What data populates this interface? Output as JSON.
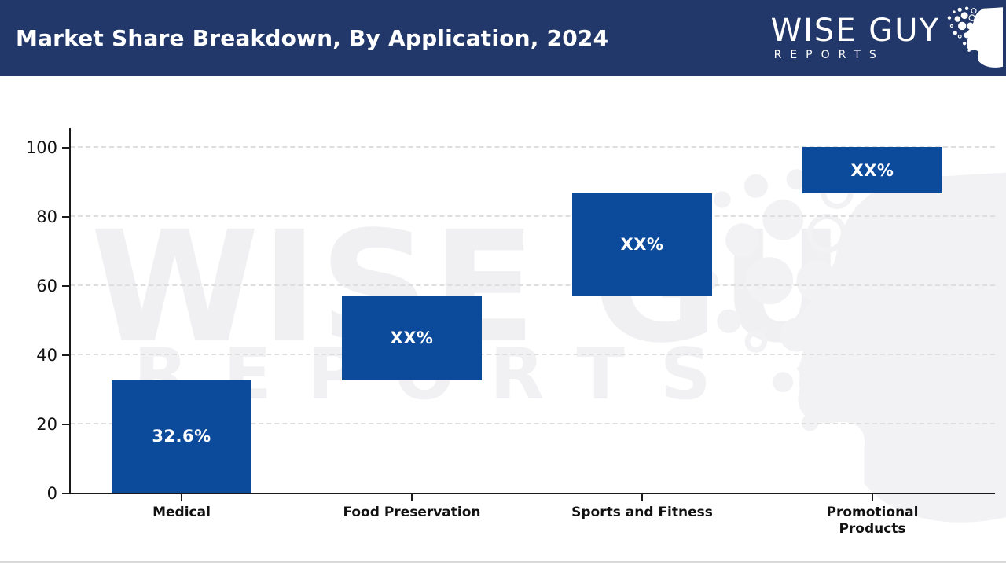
{
  "header": {
    "title": "Market Share Breakdown, By Application, 2024",
    "accent_color": "#22386a"
  },
  "logo": {
    "line1": "WISE GUY",
    "line2": "REPORTS"
  },
  "watermark": {
    "big_text": "WISE GUY",
    "reports_text": "REPORTS"
  },
  "chart_data": {
    "type": "bar",
    "subtype": "waterfall",
    "title": "Market Share Breakdown, By Application, 2024",
    "categories": [
      "Medical",
      "Food Preservation",
      "Sports and Fitness",
      "Promotional Products"
    ],
    "series": [
      {
        "name": "Market Share",
        "segments": [
          {
            "category": "Medical",
            "start": 0,
            "end": 32.6,
            "label": "32.6%"
          },
          {
            "category": "Food Preservation",
            "start": 32.6,
            "end": 57,
            "label": "XX%"
          },
          {
            "category": "Sports and Fitness",
            "start": 57,
            "end": 86.5,
            "label": "XX%"
          },
          {
            "category": "Promotional Products",
            "start": 86.5,
            "end": 100,
            "label": "XX%"
          }
        ]
      }
    ],
    "ylim": [
      0,
      105
    ],
    "yticks": [
      0,
      20,
      40,
      60,
      80,
      100
    ],
    "ytick_labels": [
      "0",
      "20",
      "40",
      "60",
      "80",
      "100"
    ],
    "xlabel": "",
    "ylabel": "",
    "grid": "horizontal-dashed",
    "legend": "none",
    "bar_color": "#0c4a9c",
    "bar_label_color": "#ffffff"
  }
}
